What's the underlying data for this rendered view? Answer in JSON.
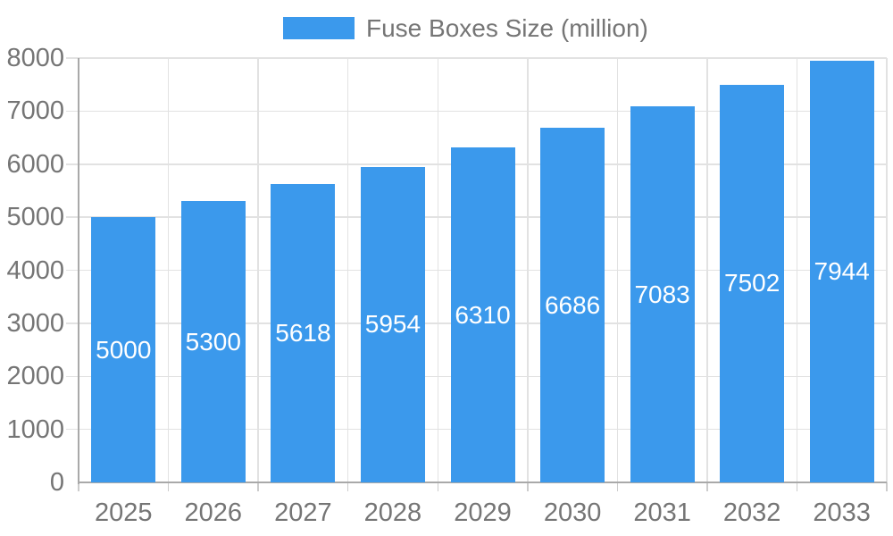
{
  "legend": {
    "label": "Fuse Boxes Size (million)"
  },
  "colors": {
    "bar": "#3B99EC",
    "bar_label_text": "#FFFFFF",
    "axis_text": "#757575",
    "legend_text": "#757575",
    "gridline": "#E2E2E2",
    "axis_line": "#A9A9A9",
    "tick": "#CCCCCC",
    "background": "#FFFFFF"
  },
  "chart_data": {
    "type": "bar",
    "title": "",
    "series_name": "Fuse Boxes Size (million)",
    "categories": [
      "2025",
      "2026",
      "2027",
      "2028",
      "2029",
      "2030",
      "2031",
      "2032",
      "2033"
    ],
    "values": [
      5000,
      5300,
      5618,
      5954,
      6310,
      6686,
      7083,
      7502,
      7944
    ],
    "xlabel": "",
    "ylabel": "",
    "ylim": [
      0,
      8000
    ],
    "yticks": [
      0,
      1000,
      2000,
      3000,
      4000,
      5000,
      6000,
      7000,
      8000
    ],
    "grid": true,
    "legend_position": "top-center",
    "value_labels": "inside-center-white"
  }
}
